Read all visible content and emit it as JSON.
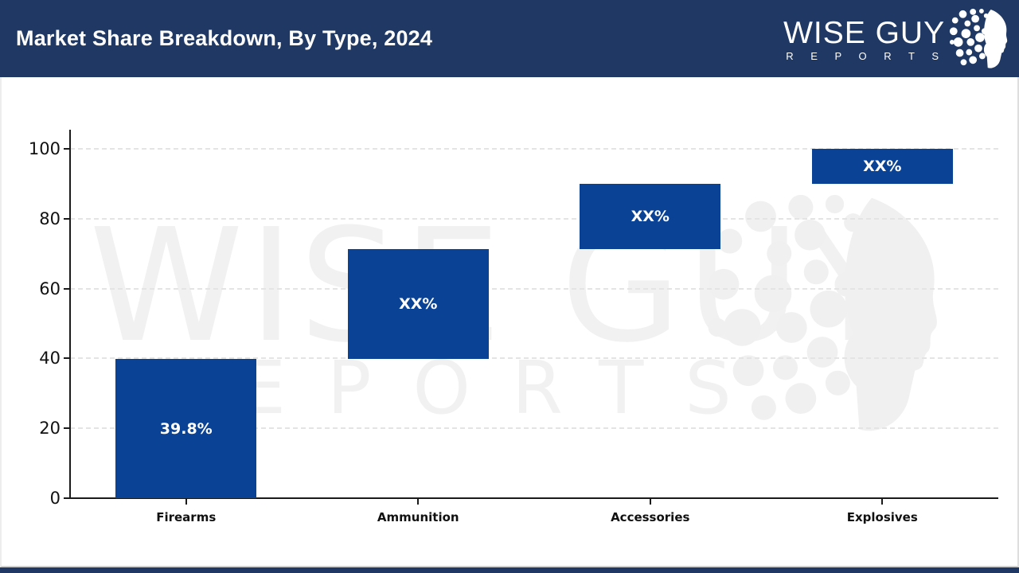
{
  "header": {
    "title": "Market Share Breakdown, By Type, 2024",
    "bg_color": "#1f3864",
    "logo": {
      "line1": "WISE GUY",
      "line2": "R E P O R T S"
    }
  },
  "watermark": {
    "line1": "WISE GUY",
    "line2": "REPORTS"
  },
  "chart_data": {
    "type": "bar",
    "subtype": "waterfall",
    "title": "Market Share Breakdown, By Type, 2024",
    "categories": [
      "Firearms",
      "Ammunition",
      "Accessories",
      "Explosives"
    ],
    "segments": [
      {
        "category": "Firearms",
        "start": 0,
        "end": 39.8,
        "label": "39.8%"
      },
      {
        "category": "Ammunition",
        "start": 39.8,
        "end": 71.2,
        "label": "XX%"
      },
      {
        "category": "Accessories",
        "start": 71.2,
        "end": 90,
        "label": "XX%"
      },
      {
        "category": "Explosives",
        "start": 90,
        "end": 100,
        "label": "XX%"
      }
    ],
    "yticks": [
      0,
      20,
      40,
      60,
      80,
      100
    ],
    "ylim": [
      0,
      105
    ],
    "xlabel": "",
    "ylabel": "",
    "grid": true,
    "grid_style": "dashed",
    "legend": false,
    "bar_color": "#0a4296",
    "grid_color": "#e4e4e4",
    "label_color": "#ffffff"
  }
}
